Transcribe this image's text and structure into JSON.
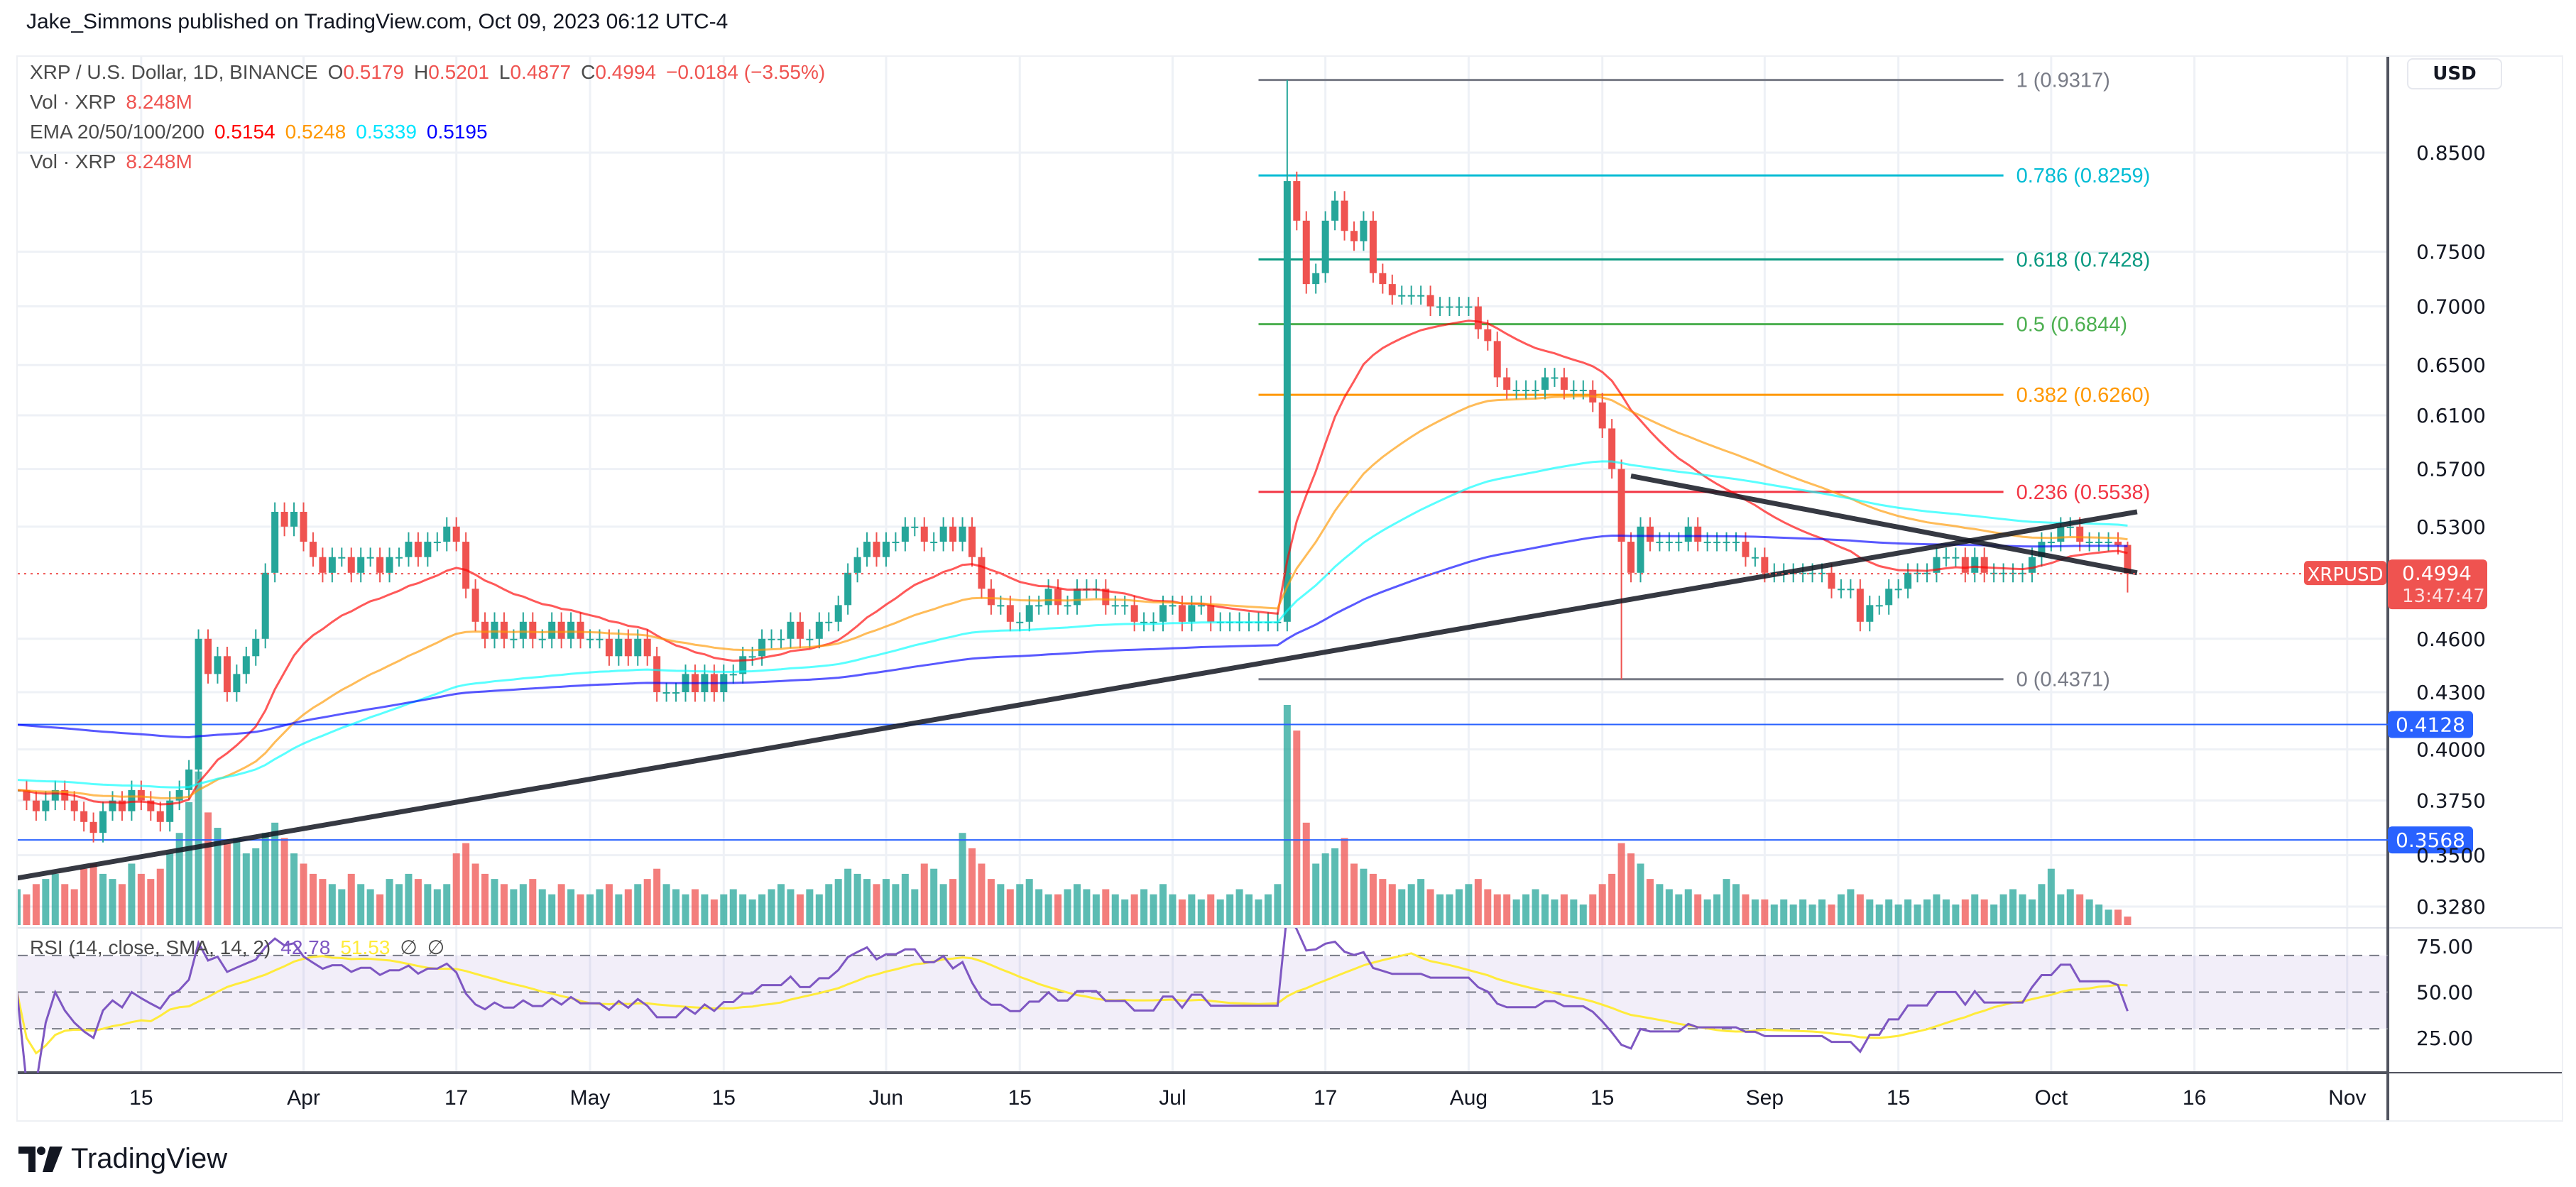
{
  "header": {
    "title": "Jake_Simmons published on TradingView.com, Oct 09, 2023 06:12 UTC-4"
  },
  "legend": {
    "symbol": "XRP / U.S. Dollar, 1D, BINANCE",
    "o_label": "O",
    "o": "0.5179",
    "h_label": "H",
    "h": "0.5201",
    "l_label": "L",
    "l": "0.4877",
    "c_label": "C",
    "c": "0.4994",
    "change": "−0.0184 (−3.55%)",
    "vol_label": "Vol · XRP",
    "vol": "8.248M",
    "ema_label": "EMA 20/50/100/200",
    "ema_values": [
      "0.5154",
      "0.5248",
      "0.5339",
      "0.5195"
    ],
    "vol2_label": "Vol · XRP",
    "vol2": "8.248M",
    "rsi_label": "RSI (14, close, SMA, 14, 2)",
    "rsi": "42.78",
    "rsi_sma": "51.53",
    "rsi_na1": "∅",
    "rsi_na2": "∅"
  },
  "price_axis": {
    "currency": "USD"
  },
  "colors": {
    "up": "#26a69a",
    "down": "#ef5350",
    "ema20": "#ff0000",
    "ema50": "#ff9800",
    "ema100": "#00ffff",
    "ema200": "#0000ff",
    "rsi": "#7e57c2",
    "rsi_sma": "#ffeb3b",
    "hline": "#2962ff",
    "trendline": "#131722"
  },
  "brand": {
    "name": "TradingView"
  },
  "chart_data": {
    "type": "candlestick",
    "symbol": "XRPUSD",
    "scale": "log",
    "grid": true,
    "start_date": "2023-03-02",
    "close": [
      0.38,
      0.375,
      0.37,
      0.375,
      0.38,
      0.375,
      0.37,
      0.365,
      0.36,
      0.37,
      0.375,
      0.37,
      0.38,
      0.375,
      0.37,
      0.365,
      0.375,
      0.38,
      0.39,
      0.46,
      0.44,
      0.45,
      0.43,
      0.44,
      0.45,
      0.46,
      0.5,
      0.54,
      0.53,
      0.54,
      0.52,
      0.51,
      0.5,
      0.51,
      0.51,
      0.5,
      0.51,
      0.51,
      0.5,
      0.51,
      0.51,
      0.52,
      0.51,
      0.52,
      0.52,
      0.53,
      0.52,
      0.49,
      0.47,
      0.46,
      0.47,
      0.46,
      0.46,
      0.47,
      0.46,
      0.46,
      0.47,
      0.46,
      0.47,
      0.46,
      0.46,
      0.46,
      0.45,
      0.46,
      0.45,
      0.46,
      0.45,
      0.43,
      0.43,
      0.43,
      0.44,
      0.43,
      0.44,
      0.43,
      0.44,
      0.44,
      0.45,
      0.45,
      0.46,
      0.46,
      0.46,
      0.47,
      0.46,
      0.46,
      0.47,
      0.47,
      0.48,
      0.5,
      0.51,
      0.52,
      0.51,
      0.52,
      0.52,
      0.53,
      0.53,
      0.52,
      0.52,
      0.53,
      0.52,
      0.53,
      0.51,
      0.49,
      0.48,
      0.48,
      0.47,
      0.47,
      0.48,
      0.48,
      0.49,
      0.48,
      0.48,
      0.49,
      0.49,
      0.49,
      0.48,
      0.48,
      0.48,
      0.47,
      0.47,
      0.47,
      0.48,
      0.48,
      0.47,
      0.48,
      0.48,
      0.47,
      0.47,
      0.47,
      0.47,
      0.47,
      0.47,
      0.47,
      0.47,
      0.82,
      0.78,
      0.72,
      0.73,
      0.78,
      0.8,
      0.77,
      0.76,
      0.78,
      0.73,
      0.72,
      0.71,
      0.71,
      0.71,
      0.71,
      0.7,
      0.7,
      0.7,
      0.7,
      0.7,
      0.68,
      0.67,
      0.64,
      0.63,
      0.63,
      0.63,
      0.63,
      0.64,
      0.64,
      0.63,
      0.63,
      0.63,
      0.62,
      0.6,
      0.57,
      0.52,
      0.5,
      0.53,
      0.52,
      0.52,
      0.52,
      0.52,
      0.53,
      0.52,
      0.52,
      0.52,
      0.52,
      0.52,
      0.51,
      0.51,
      0.5,
      0.5,
      0.5,
      0.5,
      0.5,
      0.5,
      0.5,
      0.49,
      0.49,
      0.49,
      0.47,
      0.48,
      0.48,
      0.49,
      0.49,
      0.5,
      0.5,
      0.5,
      0.51,
      0.51,
      0.51,
      0.5,
      0.51,
      0.5,
      0.5,
      0.5,
      0.5,
      0.5,
      0.51,
      0.52,
      0.52,
      0.53,
      0.53,
      0.52,
      0.52,
      0.52,
      0.52,
      0.5179,
      0.4994
    ],
    "volume_m": [
      35,
      30,
      40,
      45,
      50,
      40,
      35,
      55,
      60,
      50,
      45,
      40,
      60,
      50,
      45,
      55,
      70,
      90,
      120,
      150,
      110,
      95,
      80,
      85,
      70,
      75,
      90,
      100,
      85,
      70,
      60,
      50,
      45,
      40,
      35,
      50,
      40,
      35,
      30,
      45,
      40,
      50,
      45,
      40,
      35,
      40,
      70,
      80,
      60,
      50,
      45,
      40,
      35,
      40,
      45,
      35,
      30,
      40,
      35,
      30,
      30,
      35,
      40,
      30,
      35,
      40,
      45,
      55,
      40,
      35,
      30,
      35,
      30,
      25,
      30,
      35,
      30,
      25,
      30,
      35,
      40,
      35,
      30,
      35,
      30,
      40,
      45,
      55,
      50,
      45,
      40,
      45,
      40,
      50,
      35,
      60,
      55,
      40,
      45,
      90,
      75,
      60,
      45,
      40,
      35,
      40,
      45,
      35,
      30,
      30,
      35,
      40,
      35,
      30,
      35,
      30,
      25,
      30,
      35,
      30,
      40,
      30,
      25,
      30,
      25,
      30,
      25,
      30,
      35,
      30,
      25,
      30,
      40,
      215,
      190,
      100,
      60,
      70,
      75,
      85,
      60,
      55,
      50,
      45,
      40,
      35,
      40,
      45,
      35,
      30,
      30,
      35,
      40,
      45,
      35,
      30,
      30,
      25,
      30,
      35,
      30,
      25,
      30,
      25,
      20,
      30,
      40,
      50,
      80,
      70,
      60,
      45,
      40,
      35,
      30,
      35,
      30,
      25,
      30,
      45,
      40,
      30,
      25,
      25,
      20,
      25,
      20,
      25,
      20,
      25,
      20,
      30,
      35,
      30,
      25,
      20,
      25,
      20,
      25,
      20,
      25,
      30,
      25,
      20,
      25,
      30,
      25,
      20,
      30,
      35,
      30,
      25,
      40,
      55,
      30,
      35,
      30,
      25,
      20,
      15,
      15,
      8.248
    ],
    "candle_overrides": {
      "2023-07-13": {
        "h": 0.9317
      },
      "2023-08-17": {
        "l": 0.4371
      },
      "2023-10-09": {
        "o": 0.5179,
        "h": 0.5201,
        "l": 0.4877
      }
    },
    "last_price": "0.4994",
    "countdown": "13:47:47",
    "y_ticks": [
      "0.8500",
      "0.7500",
      "0.7000",
      "0.6500",
      "0.6100",
      "0.5700",
      "0.5300",
      "0.4600",
      "0.4300",
      "0.4000",
      "0.3750",
      "0.3500",
      "0.3280"
    ],
    "rsi_ticks": [
      "75.00",
      "50.00",
      "25.00"
    ],
    "x_ticks": [
      {
        "date": "2023-03-15",
        "label": "15"
      },
      {
        "date": "2023-04-01",
        "label": "Apr"
      },
      {
        "date": "2023-04-17",
        "label": "17"
      },
      {
        "date": "2023-05-01",
        "label": "May"
      },
      {
        "date": "2023-05-15",
        "label": "15"
      },
      {
        "date": "2023-06-01",
        "label": "Jun"
      },
      {
        "date": "2023-06-15",
        "label": "15"
      },
      {
        "date": "2023-07-01",
        "label": "Jul"
      },
      {
        "date": "2023-07-17",
        "label": "17"
      },
      {
        "date": "2023-08-01",
        "label": "Aug"
      },
      {
        "date": "2023-08-15",
        "label": "15"
      },
      {
        "date": "2023-09-01",
        "label": "Sep"
      },
      {
        "date": "2023-09-15",
        "label": "15"
      },
      {
        "date": "2023-10-01",
        "label": "Oct"
      },
      {
        "date": "2023-10-16",
        "label": "16"
      },
      {
        "date": "2023-11-01",
        "label": "Nov"
      }
    ],
    "horizontal_lines": [
      {
        "price": 0.4128,
        "label": "0.4128"
      },
      {
        "price": 0.3568,
        "label": "0.3568"
      }
    ],
    "trendlines": [
      {
        "from": {
          "date": "2023-03-02",
          "price": 0.34
        },
        "to": {
          "date": "2023-10-10",
          "price": 0.54
        }
      },
      {
        "from": {
          "date": "2023-08-18",
          "price": 0.565
        },
        "to": {
          "date": "2023-10-10",
          "price": 0.5
        }
      }
    ],
    "fibonacci": {
      "from_date": "2023-07-10",
      "to_date": "2023-09-26",
      "levels": [
        {
          "ratio": "1",
          "price": 0.9317,
          "label": "1 (0.9317)",
          "color": "#787b86"
        },
        {
          "ratio": "0.786",
          "price": 0.8259,
          "label": "0.786 (0.8259)",
          "color": "#00bcd4"
        },
        {
          "ratio": "0.618",
          "price": 0.7428,
          "label": "0.618 (0.7428)",
          "color": "#089981"
        },
        {
          "ratio": "0.5",
          "price": 0.6844,
          "label": "0.5 (0.6844)",
          "color": "#4caf50"
        },
        {
          "ratio": "0.382",
          "price": 0.626,
          "label": "0.382 (0.6260)",
          "color": "#ff9800"
        },
        {
          "ratio": "0.236",
          "price": 0.5538,
          "label": "0.236 (0.5538)",
          "color": "#f23645"
        },
        {
          "ratio": "0",
          "price": 0.4371,
          "label": "0 (0.4371)",
          "color": "#787b86"
        }
      ]
    },
    "indicators": [
      "EMA 20",
      "EMA 50",
      "EMA 100",
      "EMA 200",
      "Volume",
      "RSI 14 with SMA 14"
    ]
  }
}
